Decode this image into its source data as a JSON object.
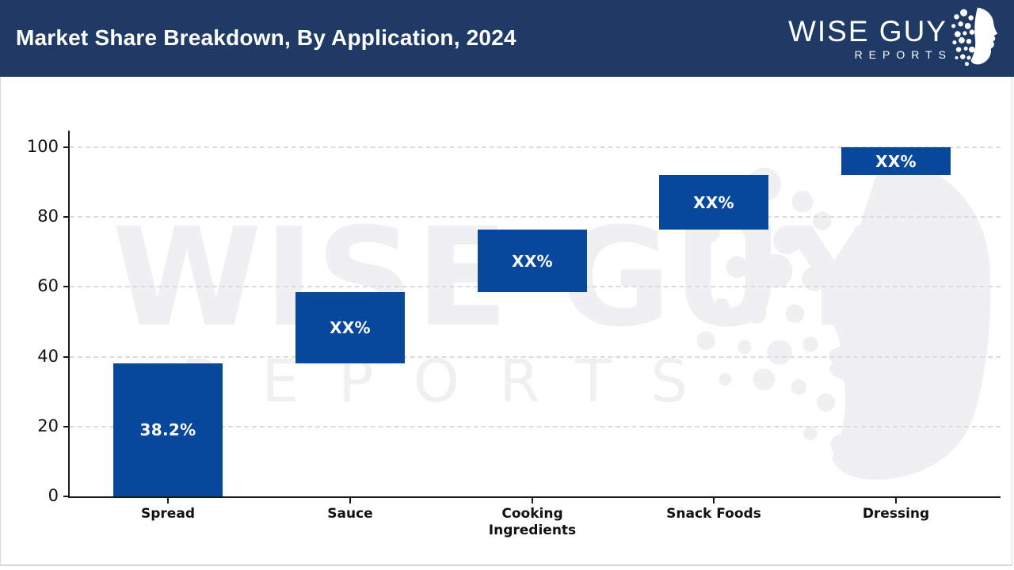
{
  "header": {
    "title": "Market Share Breakdown, By Application, 2024",
    "logo": {
      "line1": "WISE GUY",
      "line2": "REPORTS"
    }
  },
  "watermark": {
    "line1": "WISE GUY",
    "line2": "REPORTS"
  },
  "colors": {
    "header_bg": "#203A66",
    "bar": "#07489D",
    "grid": "#DCDCDC",
    "axis": "#1A1A1A",
    "bar_label": "#FFFFFF",
    "watermark": "#F0F0F2"
  },
  "chart_data": {
    "type": "bar",
    "subtype": "waterfall-floating-bars",
    "title": "Market Share Breakdown, By Application, 2024",
    "categories": [
      "Spread",
      "Sauce",
      "Cooking\nIngredients",
      "Snack Foods",
      "Dressing"
    ],
    "values": [
      38.2,
      20.2,
      18.0,
      15.6,
      8.0
    ],
    "segments": [
      [
        0,
        38.2
      ],
      [
        38.2,
        58.4
      ],
      [
        58.4,
        76.4
      ],
      [
        76.4,
        92.0
      ],
      [
        92.0,
        100.0
      ]
    ],
    "bar_labels": [
      "38.2%",
      "XX%",
      "XX%",
      "XX%",
      "XX%"
    ],
    "unit": "%",
    "xlabel": "",
    "ylabel": "",
    "yticks": [
      0,
      20,
      40,
      60,
      80,
      100
    ],
    "ylim": [
      0,
      105
    ],
    "grid": "horizontal-dashed",
    "legend": "none"
  }
}
